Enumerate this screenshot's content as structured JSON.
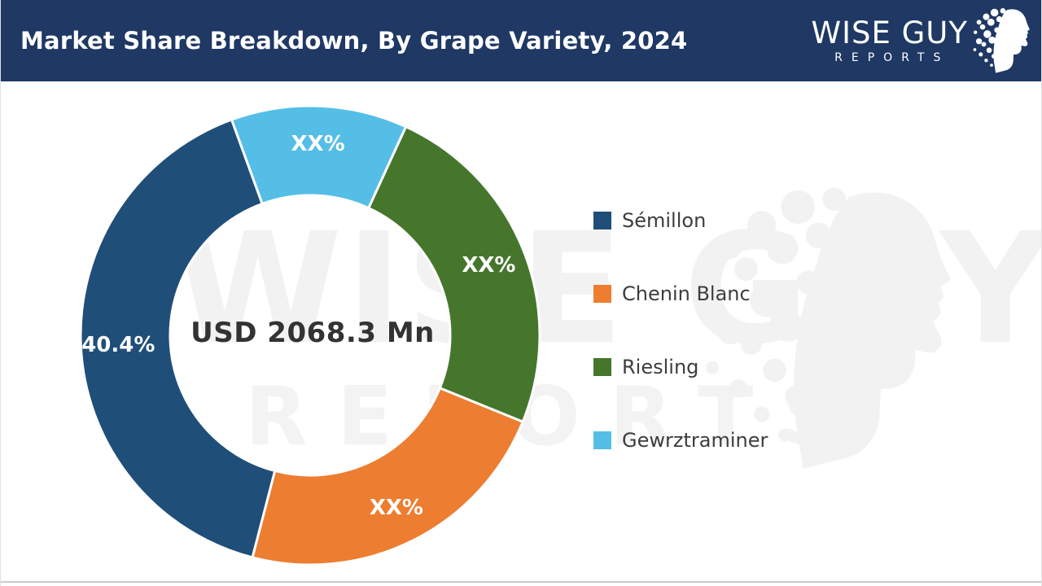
{
  "header": {
    "title": "Market Share Breakdown, By Grape Variety, 2024",
    "logo": {
      "wordmark": "WISE GUY",
      "subtext": "REPORTS"
    }
  },
  "colors": {
    "header_bg": "#1f3864",
    "semillon_blue": "#1f4e79",
    "chenin_orange": "#ed7d31",
    "riesling_green": "#45762c",
    "gewrztraminer_lightblue": "#55bee6"
  },
  "chart_data": {
    "type": "pie",
    "subtype": "donut",
    "title": "Market Share Breakdown, By Grape Variety, 2024",
    "center_label": "USD 2068.3 Mn",
    "start_clock_angle_deg": 340,
    "direction": "counterclockwise",
    "legend_position": "right",
    "slices": [
      {
        "name": "Sémillon",
        "value_pct": 40.4,
        "display_label": "40.4%",
        "color": "#1f4e79"
      },
      {
        "name": "Chenin Blanc",
        "value_pct": 22.9,
        "display_label": "XX%",
        "color": "#ed7d31"
      },
      {
        "name": "Riesling",
        "value_pct": 24.3,
        "display_label": "XX%",
        "color": "#45762c"
      },
      {
        "name": "Gewrztraminer",
        "value_pct": 12.4,
        "display_label": "XX%",
        "color": "#55bee6"
      }
    ]
  },
  "watermark": {
    "wordmark": "WISE GUY",
    "subtext": "REPORTS"
  }
}
